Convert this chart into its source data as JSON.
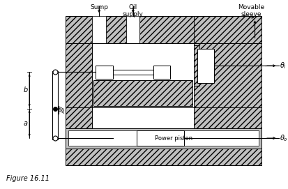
{
  "bg_color": "#ffffff",
  "labels": {
    "sump": "Sump",
    "oil_supply": "Oil\nsupply",
    "movable_sleeve": "Movable\nsleeve",
    "power_piston": "Power piston",
    "figure": "Figure 16.11",
    "b": "b",
    "a": "a"
  },
  "colors": {
    "hatch_face": "#c8c8c8",
    "white": "#ffffff",
    "black": "#000000"
  }
}
